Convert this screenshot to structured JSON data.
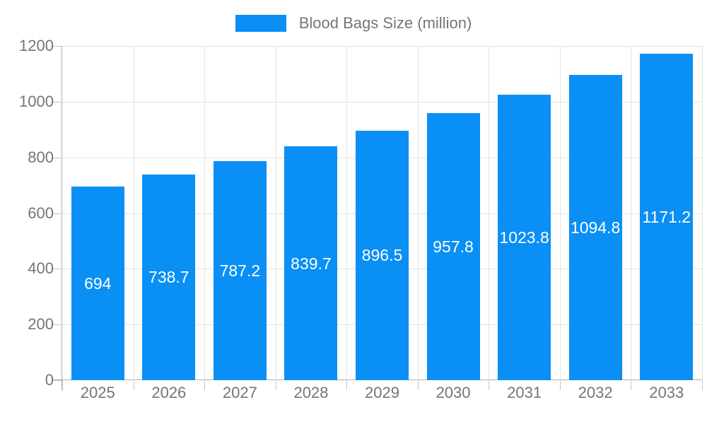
{
  "chart_data": {
    "type": "bar",
    "title": "Blood Bags Size (million)",
    "categories": [
      "2025",
      "2026",
      "2027",
      "2028",
      "2029",
      "2030",
      "2031",
      "2032",
      "2033"
    ],
    "series": [
      {
        "name": "Blood Bags Size (million)",
        "values": [
          694,
          738.7,
          787.2,
          839.7,
          896.5,
          957.8,
          1023.8,
          1094.8,
          1171.2
        ]
      }
    ],
    "value_labels": [
      "694",
      "738.7",
      "787.2",
      "839.7",
      "896.5",
      "957.8",
      "1023.8",
      "1094.8",
      "1171.2"
    ],
    "xlabel": "",
    "ylabel": "",
    "ylim": [
      0,
      1200
    ],
    "y_ticks": [
      0,
      200,
      400,
      600,
      800,
      1000,
      1200
    ],
    "grid": true,
    "legend_position": "top",
    "colors": {
      "bar": "#0a8ff5",
      "grid": "#e3e3e3",
      "axis": "#b0b0b0",
      "tick_text": "#757575",
      "bar_label": "#ffffff",
      "background": "#ffffff"
    }
  }
}
